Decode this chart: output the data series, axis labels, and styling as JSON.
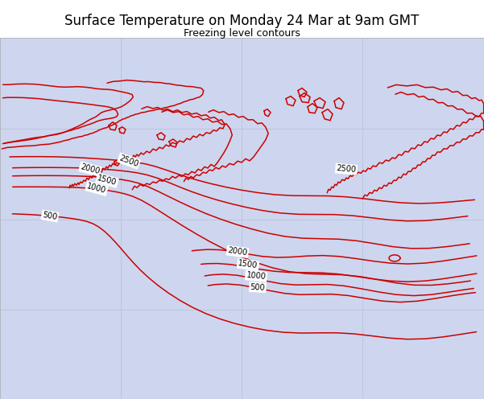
{
  "title": "Surface Temperature on Monday 24 Mar at 9am GMT",
  "subtitle": "Freezing level contours",
  "title_fontsize": 12,
  "subtitle_fontsize": 9,
  "map_bg_color": "#cdd6ee",
  "contour_color": "#cc0000",
  "label_fontsize": 7,
  "contour_linewidth": 1.1,
  "grid_color": "#b8c2d8",
  "title_area_color": "#ffffff"
}
